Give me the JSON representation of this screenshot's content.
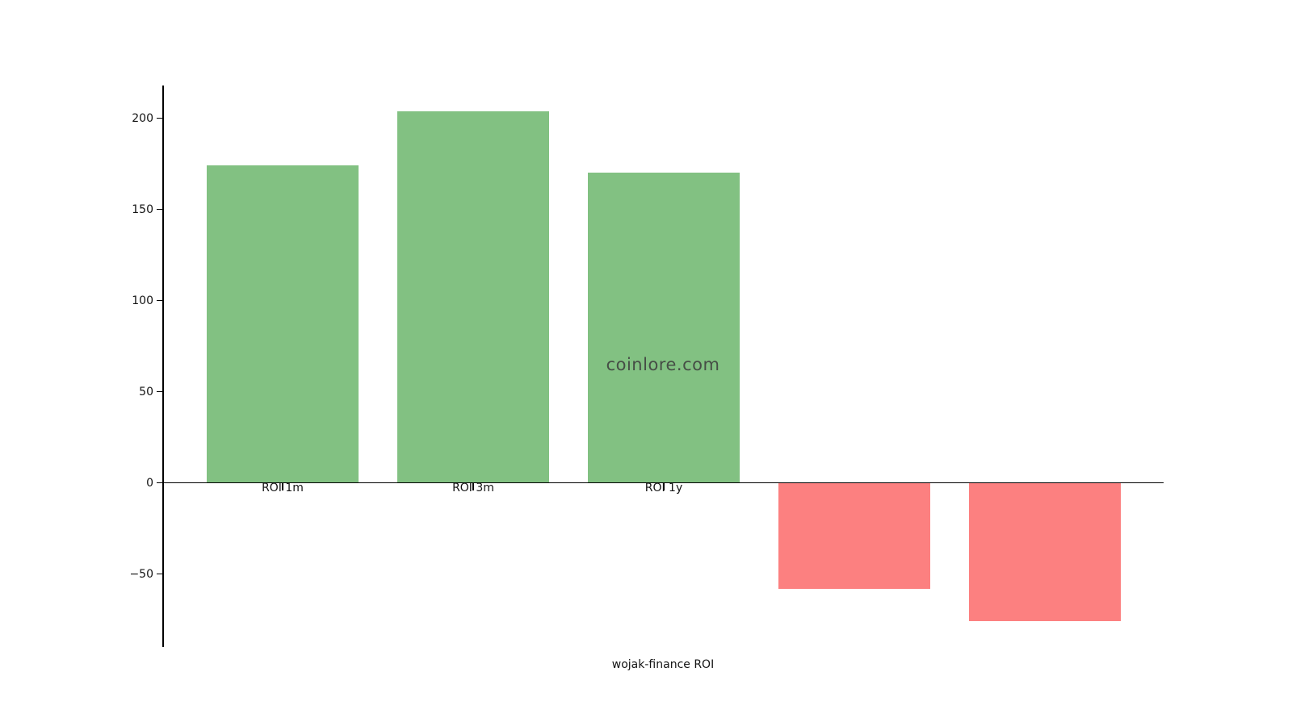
{
  "chart_data": {
    "type": "bar",
    "title": "wojak-finance ROI",
    "categories": [
      "ROI 1m",
      "ROI 3m",
      "ROI 1y",
      "",
      ""
    ],
    "values": [
      174,
      204,
      170,
      -58,
      -76
    ],
    "positive_color": "#82c182",
    "negative_color": "#fc8080",
    "yticks": [
      200,
      150,
      100,
      50,
      0,
      -50
    ],
    "ylim": [
      -90,
      218
    ],
    "xlabel": "",
    "ylabel": "",
    "grid": false,
    "legend_position": "none",
    "notes": "labels of the two negative bars are hidden behind the red bars"
  },
  "watermark": {
    "text": "coinlore.com"
  },
  "colors": {
    "background": "#ffffff",
    "axis_line": "#000000",
    "tick_label": "#141414",
    "watermark_text": "#3e3e3e"
  }
}
